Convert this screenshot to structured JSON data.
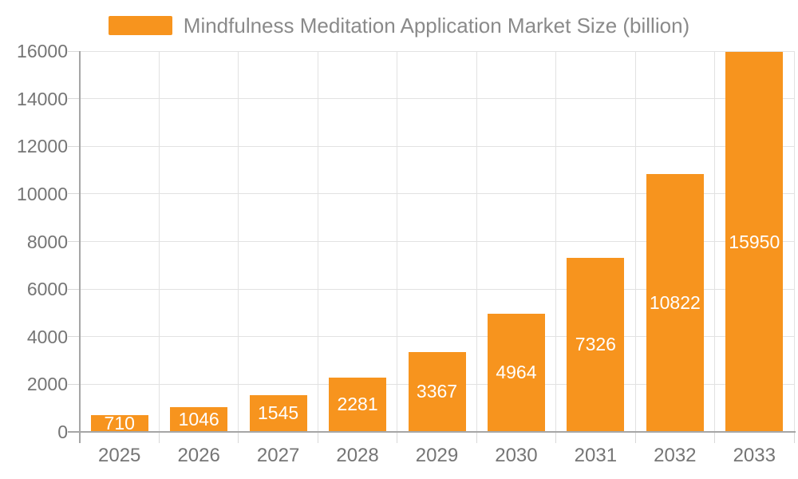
{
  "legend": {
    "label": "Mindfulness Meditation Application Market Size (billion)"
  },
  "colors": {
    "bar": "#f7941e",
    "grid": "#e2e2e2",
    "axis": "#a6a6a6",
    "tick_text": "#757575",
    "legend_text": "#8a8a8a",
    "value_text": "#ffffff",
    "background": "#ffffff"
  },
  "chart_data": {
    "type": "bar",
    "title": "Mindfulness Meditation Application Market Size (billion)",
    "categories": [
      "2025",
      "2026",
      "2027",
      "2028",
      "2029",
      "2030",
      "2031",
      "2032",
      "2033"
    ],
    "values": [
      710,
      1046,
      1545,
      2281,
      3367,
      4964,
      7326,
      10822,
      15950
    ],
    "xlabel": "",
    "ylabel": "",
    "ylim": [
      0,
      16000
    ],
    "ytick_step": 2000,
    "grid": true,
    "legend_position": "top",
    "value_labels": "inside-center"
  }
}
